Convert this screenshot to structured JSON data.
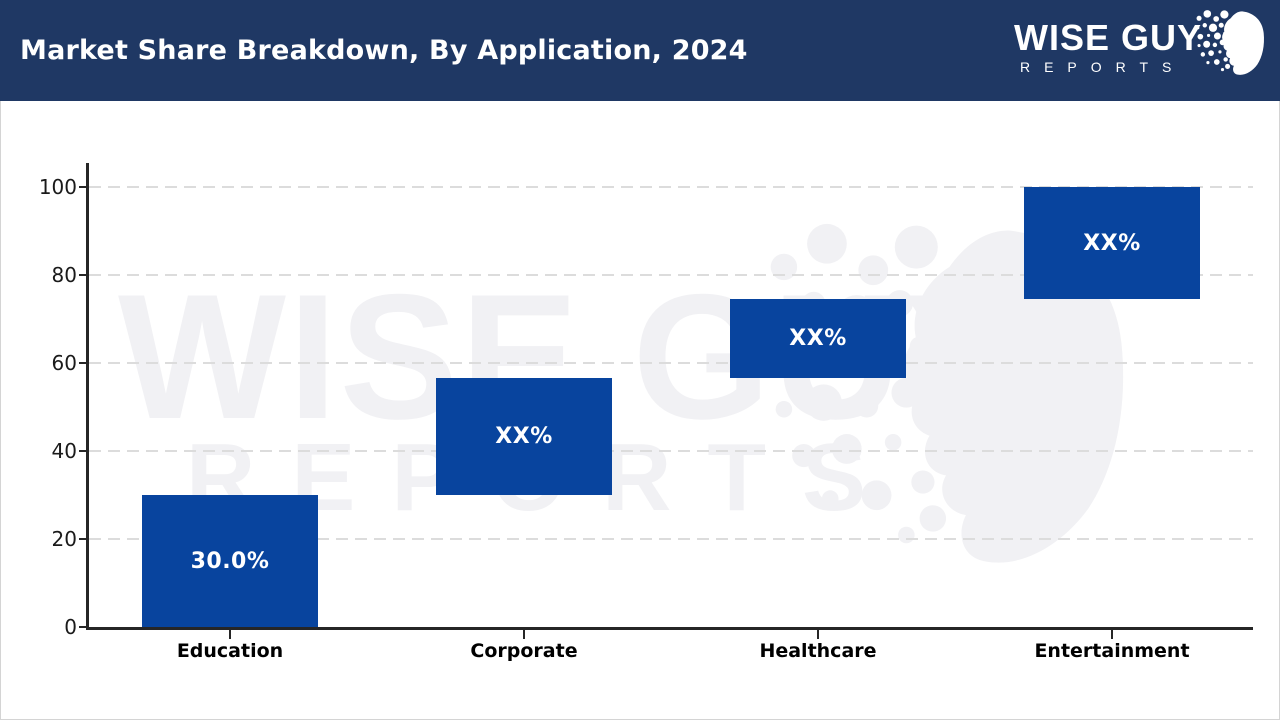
{
  "header": {
    "title": "Market Share Breakdown, By Application, 2024",
    "logo": {
      "name": "WISE GUY",
      "tagline": "REPORTS"
    }
  },
  "watermark": {
    "name": "WISE GUY",
    "tagline": "REPORTS"
  },
  "colors": {
    "header_bg": "#1f3864",
    "bar": "#08449e",
    "bar_label_text": "#ffffff",
    "axis": "#262626",
    "grid": "#dcdcdc",
    "tick_label_text": "#1a1a1a",
    "watermark": "#f1f1f4"
  },
  "chart_data": {
    "type": "bar",
    "variant": "waterfall",
    "title": "Market Share Breakdown, By Application, 2024",
    "categories": [
      "Education",
      "Corporate",
      "Healthcare",
      "Entertainment"
    ],
    "segments": [
      {
        "category": "Education",
        "start": 0,
        "end": 30,
        "label": "30.0%"
      },
      {
        "category": "Corporate",
        "start": 30,
        "end": 56.5,
        "label": "XX%"
      },
      {
        "category": "Healthcare",
        "start": 56.5,
        "end": 74.5,
        "label": "XX%"
      },
      {
        "category": "Entertainment",
        "start": 74.5,
        "end": 100,
        "label": "XX%"
      }
    ],
    "values_masked_as": "XX%",
    "yticks": [
      0,
      20,
      40,
      60,
      80,
      100
    ],
    "ylim": [
      0,
      105
    ],
    "grid": "horizontal-dashed",
    "legend": "none",
    "xlabel": "",
    "ylabel": ""
  }
}
